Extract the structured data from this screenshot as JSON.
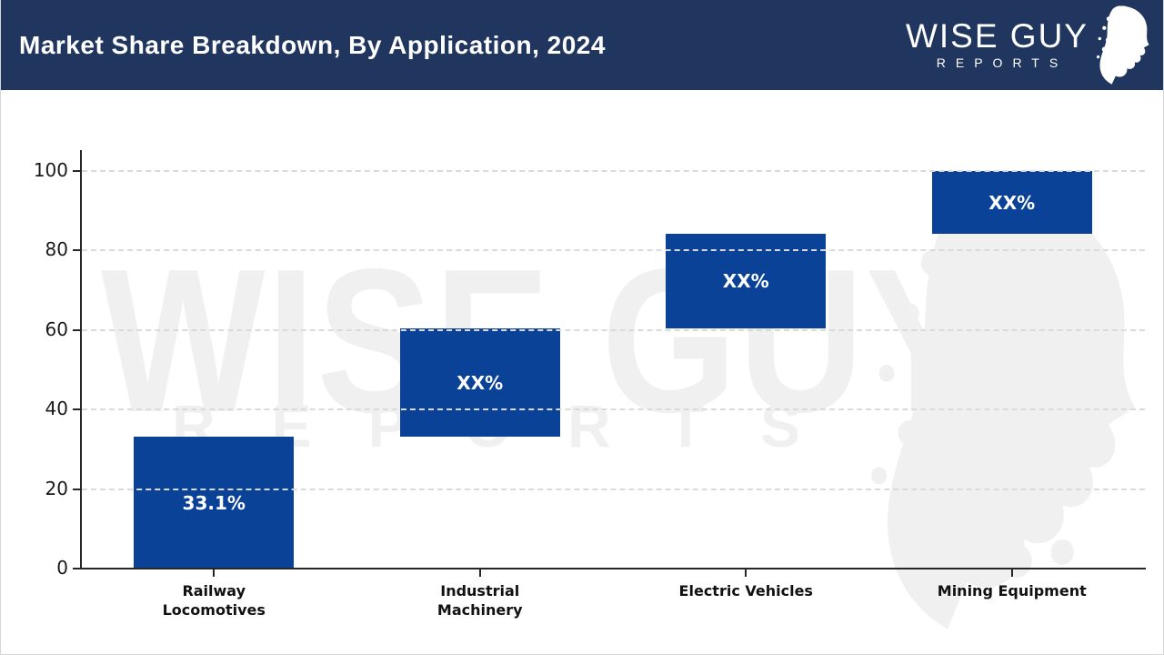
{
  "header": {
    "title": "Market Share Breakdown, By Application, 2024",
    "brand_name": "WISE GUY",
    "brand_subtitle": "REPORTS"
  },
  "watermark": {
    "brand_name": "WISE GUY",
    "brand_subtitle": "REPORTS"
  },
  "colors": {
    "header_bg": "#20365f",
    "bar": "#0a4298",
    "bar_label": "#ffffff",
    "watermark": "#f0f0f1",
    "axis": "#262626",
    "grid": "#dadada"
  },
  "chart_data": {
    "type": "bar",
    "subtype": "waterfall",
    "title": "Market Share Breakdown, By Application, 2024",
    "categories": [
      "Railway Locomotives",
      "Industrial Machinery",
      "Electric Vehicles",
      "Mining Equipment"
    ],
    "category_label_lines": [
      [
        "Railway",
        "Locomotives"
      ],
      [
        "Industrial",
        "Machinery"
      ],
      [
        "Electric Vehicles"
      ],
      [
        "Mining Equipment"
      ]
    ],
    "series": [
      {
        "name": "Market Share (%)",
        "segments": [
          {
            "category": "Railway Locomotives",
            "start": 0,
            "end": 33.1,
            "label": "33.1%"
          },
          {
            "category": "Industrial Machinery",
            "start": 33.1,
            "end": 60.3,
            "label": "XX%"
          },
          {
            "category": "Electric Vehicles",
            "start": 60.3,
            "end": 84.2,
            "label": "XX%"
          },
          {
            "category": "Mining Equipment",
            "start": 84.2,
            "end": 100,
            "label": "XX%"
          }
        ]
      }
    ],
    "xlabel": "",
    "ylabel": "",
    "ylim": [
      0,
      105
    ],
    "yticks": [
      0,
      20,
      40,
      60,
      80,
      100
    ],
    "grid": {
      "horizontal": true,
      "style": "dashed"
    },
    "legend": "none"
  }
}
